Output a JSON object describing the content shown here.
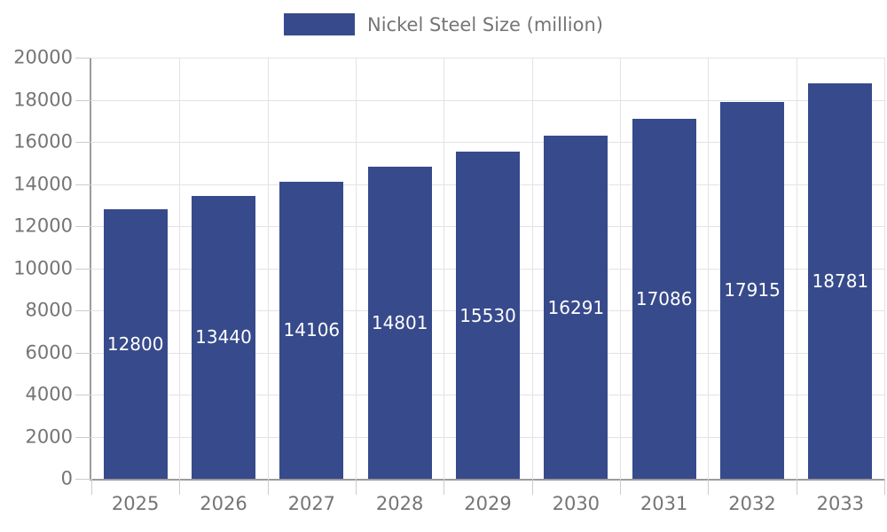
{
  "chart_data": {
    "type": "bar",
    "title": "",
    "legend": "Nickel Steel Size (million)",
    "legend_position": "top-center",
    "categories": [
      "2025",
      "2026",
      "2027",
      "2028",
      "2029",
      "2030",
      "2031",
      "2032",
      "2033"
    ],
    "values": [
      12800,
      13440,
      14106,
      14801,
      15530,
      16291,
      17086,
      17915,
      18781
    ],
    "xlabel": "",
    "ylabel": "",
    "ylim": [
      0,
      20000
    ],
    "yticks": [
      0,
      2000,
      4000,
      6000,
      8000,
      10000,
      12000,
      14000,
      16000,
      18000,
      20000
    ],
    "grid": true,
    "value_labels": "inside-middle",
    "colors": {
      "bar": "#374A8B",
      "value_label": "#ffffff",
      "axis_text": "#757575",
      "grid_line": "#e3e3e7",
      "axis_line": "#9b9b9b",
      "tick_line": "#cccccc",
      "background": "#ffffff"
    }
  }
}
